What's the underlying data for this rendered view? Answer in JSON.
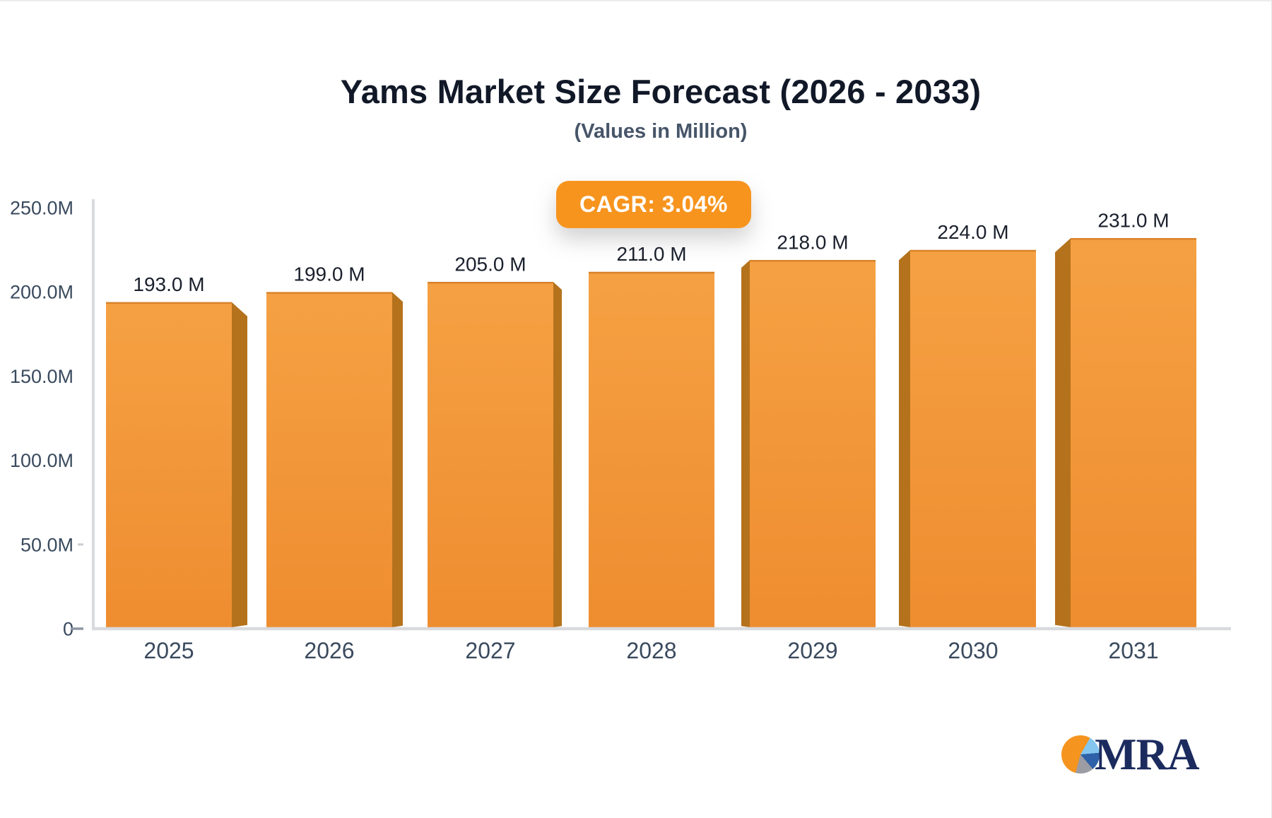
{
  "header": {
    "title": "Yams Market Size Forecast (2026 - 2033)",
    "subtitle": "(Values in Million)"
  },
  "badge": {
    "label": "CAGR: 3.04%",
    "background": "#F7941E",
    "text_color": "#ffffff"
  },
  "chart_data": {
    "type": "bar",
    "title": "Yams Market Size Forecast (2026 - 2033)",
    "subtitle": "(Values in Million)",
    "unit": "Million",
    "cagr": "3.04%",
    "categories": [
      "2025",
      "2026",
      "2027",
      "2028",
      "2029",
      "2030",
      "2031"
    ],
    "values": [
      193,
      199,
      205,
      211,
      218,
      224,
      231
    ],
    "value_labels": [
      "193.0 M",
      "199.0 M",
      "205.0 M",
      "211.0 M",
      "218.0 M",
      "224.0 M",
      "231.0 M"
    ],
    "ylim": [
      0,
      250
    ],
    "yticks": [
      {
        "v": 0,
        "label": "0"
      },
      {
        "v": 50,
        "label": "50.0M"
      },
      {
        "v": 100,
        "label": "100.0M"
      },
      {
        "v": 150,
        "label": "150.0M"
      },
      {
        "v": 200,
        "label": "200.0M"
      },
      {
        "v": 250,
        "label": "250.0M"
      }
    ],
    "grid": false,
    "legend": "none",
    "colors": {
      "bar_top": "#F5A143",
      "bar_bottom": "#EE8D30",
      "bar_side": "#B5721C",
      "bar_edge": "#D9822A",
      "axis_line": "#D8DADE",
      "tick_label": "#3A4A5E",
      "value_label": "#1A202C",
      "minor_tick": "#C9CDD3",
      "zero_tick": "#8E97A3"
    }
  },
  "logo": {
    "text": "MRA",
    "text_color": "#1C2B5E",
    "pie_colors": {
      "orange": "#F5941F",
      "light_blue": "#85C6EF",
      "blue": "#2E61A8",
      "gray": "#9C9CA4"
    }
  }
}
